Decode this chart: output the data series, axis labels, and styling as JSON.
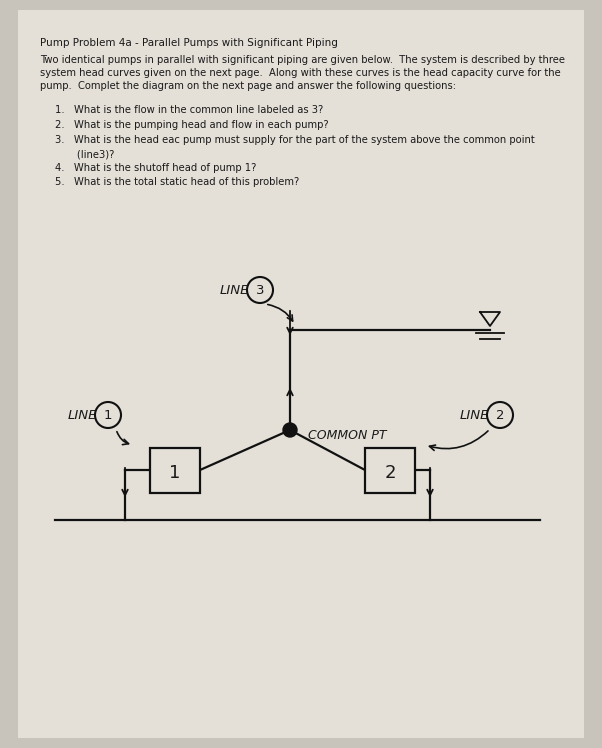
{
  "title": "Pump Problem 4a - Parallel Pumps with Significant Piping",
  "intro_line1": "Two identical pumps in parallel with significant piping are given below.  The system is described by three",
  "intro_line2": "system head curves given on the next page.  Along with these curves is the head capacity curve for the",
  "intro_line3": "pump.  Complet the diagram on the next page and answer the following questions:",
  "q1": "1.   What is the flow in the common line labeled as 3?",
  "q2": "2.   What is the pumping head and flow in each pump?",
  "q3a": "3.   What is the head eac pump must supply for the part of the system above the common point",
  "q3b": "       (line3)?",
  "q4": "4.   What is the shutoff head of pump 1?",
  "q5": "5.   What is the total static head of this problem?",
  "bg_color": "#c8c4bc",
  "paper_color": "#e4e0d8",
  "text_color": "#1a1a1a",
  "line_color": "#111111"
}
